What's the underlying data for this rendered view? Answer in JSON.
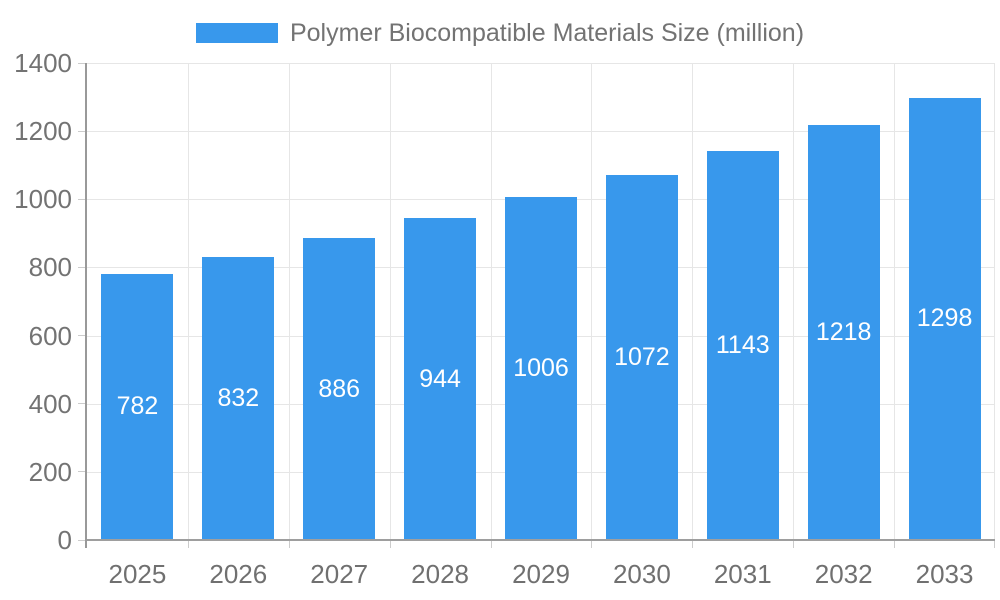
{
  "chart_data": {
    "type": "bar",
    "title": "Polymer Biocompatible Materials Size (million)",
    "categories": [
      "2025",
      "2026",
      "2027",
      "2028",
      "2029",
      "2030",
      "2031",
      "2032",
      "2033"
    ],
    "series": [
      {
        "name": "Polymer Biocompatible Materials Size (million)",
        "values": [
          782,
          832,
          886,
          944,
          1006,
          1072,
          1143,
          1218,
          1298
        ]
      }
    ],
    "value_labels": [
      "782",
      "832",
      "886",
      "944",
      "1006",
      "1072",
      "1143",
      "1218",
      "1298"
    ],
    "xlabel": "",
    "ylabel": "",
    "ylim": [
      0,
      1400
    ],
    "yticks": [
      0,
      200,
      400,
      600,
      800,
      1000,
      1200,
      1400
    ],
    "grid": true,
    "legend_position": "top",
    "colors": {
      "bar": "#3898ec",
      "value_label": "#ffffff",
      "grid": "#e6e6e6",
      "axis": "#999999",
      "tick": "#cccccc",
      "text": "#737373"
    }
  }
}
